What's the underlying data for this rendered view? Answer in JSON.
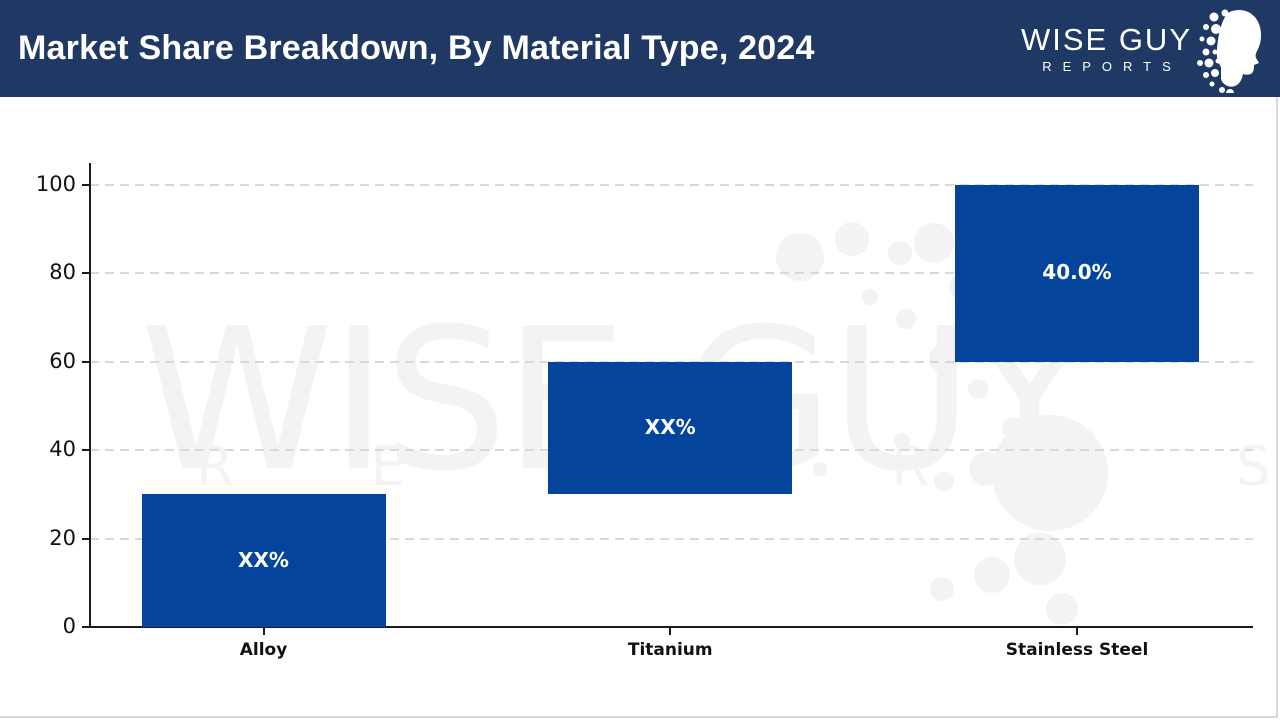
{
  "header": {
    "title": "Market Share Breakdown, By Material Type, 2024",
    "logo": {
      "line1": "WISE GUY",
      "line2": "REPORTS",
      "face_icon": "dotted-head-profile"
    }
  },
  "watermark": {
    "line1": "WISE GUY",
    "line2": "R E P O R T S"
  },
  "colors": {
    "header_bg": "#203864",
    "bar": "#04449c",
    "bar_label": "#ffffff",
    "grid": "#d9d9d9",
    "axis": "#1a1a1a",
    "watermark": "#f3f3f5"
  },
  "chart_data": {
    "type": "bar",
    "subtype": "waterfall (floating segment bars)",
    "title": "Market Share Breakdown, By Material Type, 2024",
    "xlabel": "",
    "ylabel": "",
    "categories": [
      "Alloy",
      "Titanium",
      "Stainless Steel"
    ],
    "bars": [
      {
        "category": "Alloy",
        "start": 0,
        "end": 30,
        "value_label": "XX%"
      },
      {
        "category": "Titanium",
        "start": 30,
        "end": 60,
        "value_label": "XX%"
      },
      {
        "category": "Stainless Steel",
        "start": 60,
        "end": 100,
        "value_label": "40.0%"
      }
    ],
    "yticks": [
      0,
      20,
      40,
      60,
      80,
      100
    ],
    "ylim": [
      0,
      105
    ],
    "grid": "horizontal dashed",
    "legend": "none"
  }
}
